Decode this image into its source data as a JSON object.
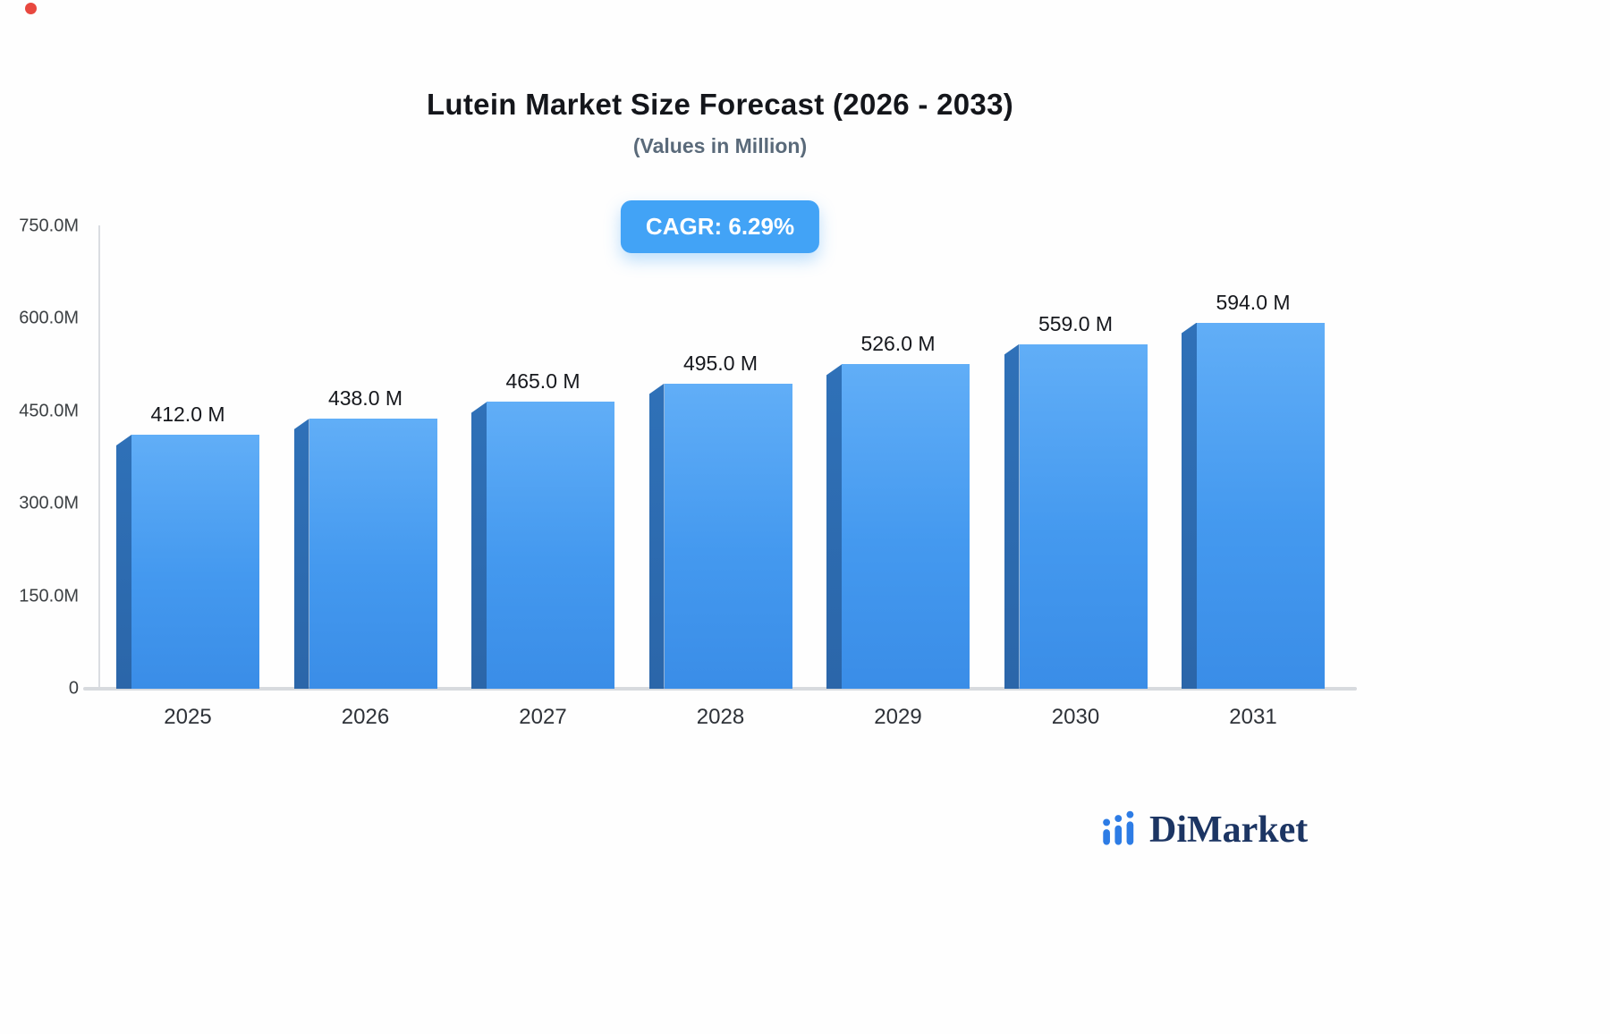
{
  "header": {
    "title": "Lutein Market Size Forecast (2026 - 2033)",
    "subtitle": "(Values in Million)"
  },
  "badge": {
    "label": "CAGR: 6.29%",
    "color": "#42a3f6"
  },
  "chart_data": {
    "type": "bar",
    "title": "Lutein Market Size Forecast (2026 - 2033)",
    "subtitle": "(Values in Million)",
    "categories": [
      "2025",
      "2026",
      "2027",
      "2028",
      "2029",
      "2030",
      "2031"
    ],
    "values": [
      412.0,
      438.0,
      465.0,
      495.0,
      526.0,
      559.0,
      594.0
    ],
    "bar_labels": [
      "412.0 M",
      "438.0 M",
      "465.0 M",
      "495.0 M",
      "526.0 M",
      "559.0 M",
      "594.0 M"
    ],
    "y_ticks": [
      "750.0M",
      "600.0M",
      "450.0M",
      "300.0M",
      "150.0M",
      "0"
    ],
    "y_tick_values": [
      750,
      600,
      450,
      300,
      150,
      0
    ],
    "ylim": [
      0,
      750
    ],
    "xlabel": "",
    "ylabel": "",
    "grid": false,
    "legend": false,
    "bar_color_top": "#61aef7",
    "bar_color_bottom": "#3a8de7",
    "bar_side_color": "#2e6fb5",
    "cagr_annotation": "CAGR: 6.29%"
  },
  "logo": {
    "text": "DiMarket",
    "icon": "bar-chart-icon",
    "icon_color": "#2d7ce5",
    "text_color": "#1c3563"
  }
}
